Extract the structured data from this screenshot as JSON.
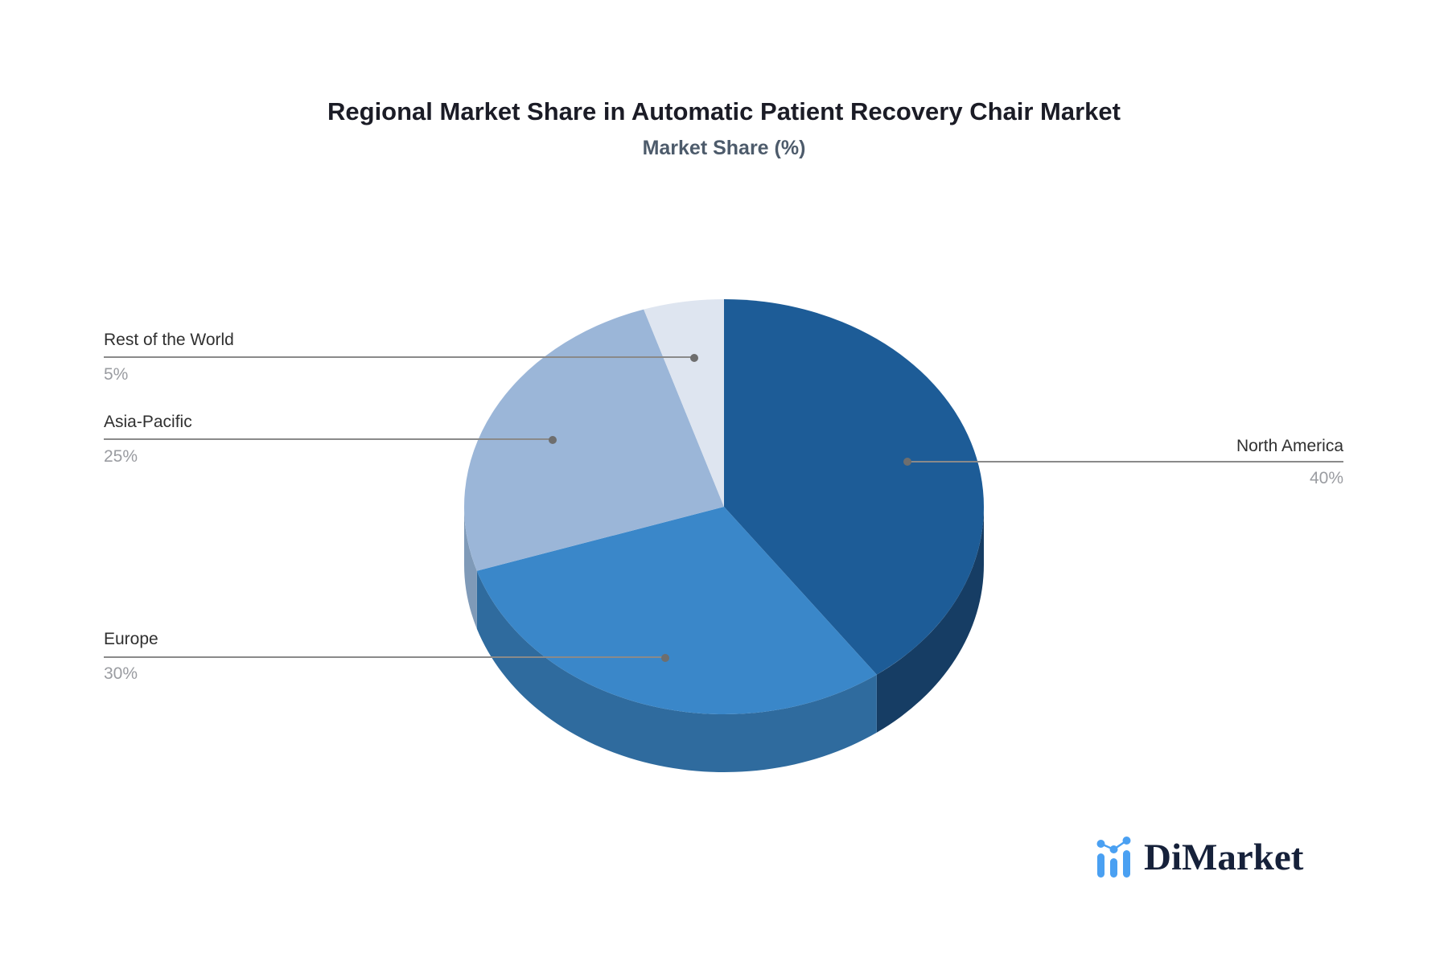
{
  "chart_data": {
    "type": "pie",
    "style": "3d",
    "title": "Regional Market Share in Automatic Patient Recovery Chair Market",
    "subtitle": "Market Share (%)",
    "unit": "%",
    "direction": "clockwise",
    "start_angle_clock_deg": 0,
    "legend_position": "callout-labels",
    "leader_line_color": "#8a8a8a",
    "leader_dot_color": "#6e6e6e",
    "categories": [
      "North America",
      "Europe",
      "Asia-Pacific",
      "Rest of the World"
    ],
    "values": [
      40,
      30,
      25,
      5
    ],
    "segments": [
      {
        "label": "North America",
        "value": 40,
        "display": "40%",
        "color": "#1d5c97",
        "side_color": "#163d64"
      },
      {
        "label": "Europe",
        "value": 30,
        "display": "30%",
        "color": "#3a87c9",
        "side_color": "#2f6b9e"
      },
      {
        "label": "Asia-Pacific",
        "value": 25,
        "display": "25%",
        "color": "#9bb6d8",
        "side_color": "#7f9ab8"
      },
      {
        "label": "Rest of the World",
        "value": 5,
        "display": "5%",
        "color": "#dee5f0",
        "side_color": "#c5cedd"
      }
    ]
  },
  "branding": {
    "name": "DiMarket",
    "icon": "bar-chart-trend-icon",
    "icon_color": "#4aa0f2",
    "text_color": "#16213a"
  }
}
